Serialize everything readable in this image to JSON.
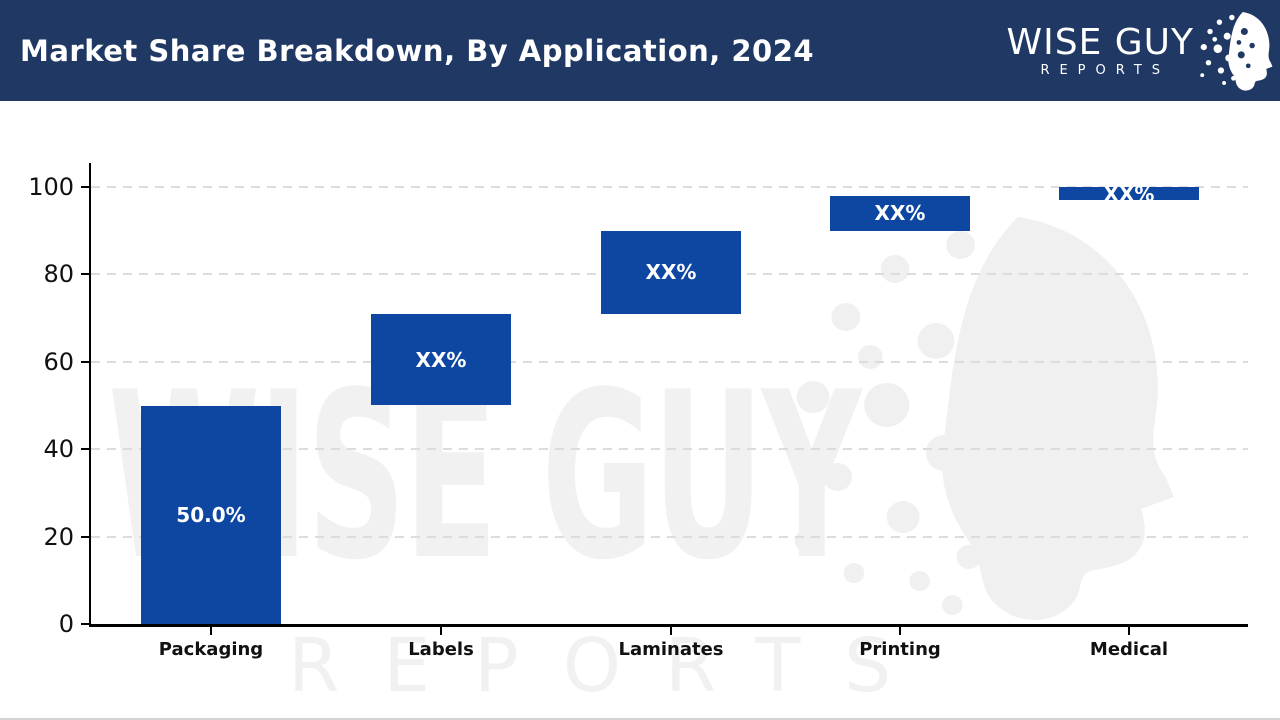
{
  "header": {
    "title": "Market Share Breakdown, By Application, 2024",
    "logo": {
      "line1": "WISE GUY",
      "line2": "REPORTS"
    }
  },
  "watermark": {
    "line1": "WISE GUY",
    "line2": "REPORTS"
  },
  "colors": {
    "header_bg": "#1f3864",
    "bar": "#0d47a1",
    "grid": "#dcdcdc",
    "axis": "#000000",
    "tick_text": "#111111",
    "bar_label_text": "#ffffff",
    "watermark": "#f1f1f1",
    "bottom_border": "#d4d4d4"
  },
  "chart_data": {
    "type": "bar",
    "subtype": "waterfall",
    "title": "Market Share Breakdown, By Application, 2024",
    "xlabel": "",
    "ylabel": "",
    "categories": [
      "Packaging",
      "Labels",
      "Laminates",
      "Printing",
      "Medical"
    ],
    "series": [
      {
        "name": "Market Share",
        "segments": [
          {
            "category": "Packaging",
            "from": 0,
            "to": 50,
            "label": "50.0%"
          },
          {
            "category": "Labels",
            "from": 50,
            "to": 71,
            "label": "XX%"
          },
          {
            "category": "Laminates",
            "from": 71,
            "to": 90,
            "label": "XX%"
          },
          {
            "category": "Printing",
            "from": 90,
            "to": 98,
            "label": "XX%"
          },
          {
            "category": "Medical",
            "from": 97,
            "to": 100,
            "label": "XX%"
          }
        ]
      }
    ],
    "yticks": [
      0,
      20,
      40,
      60,
      80,
      100
    ],
    "ylim": [
      0,
      105.5
    ],
    "grid": "dashed-horizontal-only",
    "legend": "none"
  }
}
